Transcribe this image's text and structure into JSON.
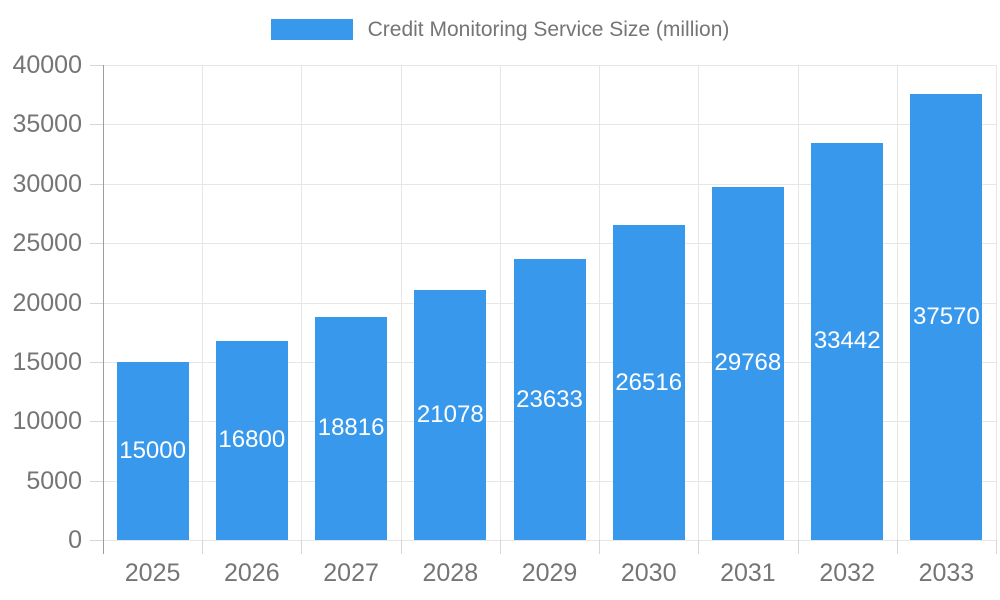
{
  "legend": {
    "label": "Credit Monitoring Service Size (million)"
  },
  "chart_data": {
    "type": "bar",
    "title": "Credit Monitoring Service Size (million)",
    "categories": [
      "2025",
      "2026",
      "2027",
      "2028",
      "2029",
      "2030",
      "2031",
      "2032",
      "2033"
    ],
    "values": [
      15000,
      16800,
      18816,
      21078,
      23633,
      26516,
      29768,
      33442,
      37570
    ],
    "bar_labels": [
      "15000",
      "16800",
      "18816",
      "21078",
      "23633",
      "26516",
      "29768",
      "33442",
      "37570"
    ],
    "yticks": [
      0,
      5000,
      10000,
      15000,
      20000,
      25000,
      30000,
      35000,
      40000
    ],
    "ylim": [
      0,
      40000
    ],
    "xlabel": "",
    "ylabel": "",
    "grid": "horizontal and vertical light gridlines",
    "legend_position": "top-center",
    "value_label_position": "centered inside bar"
  },
  "colors": {
    "bar": "#3899EC",
    "legend_swatch": "#3899EC",
    "bar_value_text": "#FFFFFF",
    "axis_text": "#757575",
    "legend_text": "#757575",
    "gridline": "#E6E6E6",
    "tick": "#D6D6D6",
    "y_axis_line": "#9E9E9E",
    "background": "#FFFFFF"
  }
}
